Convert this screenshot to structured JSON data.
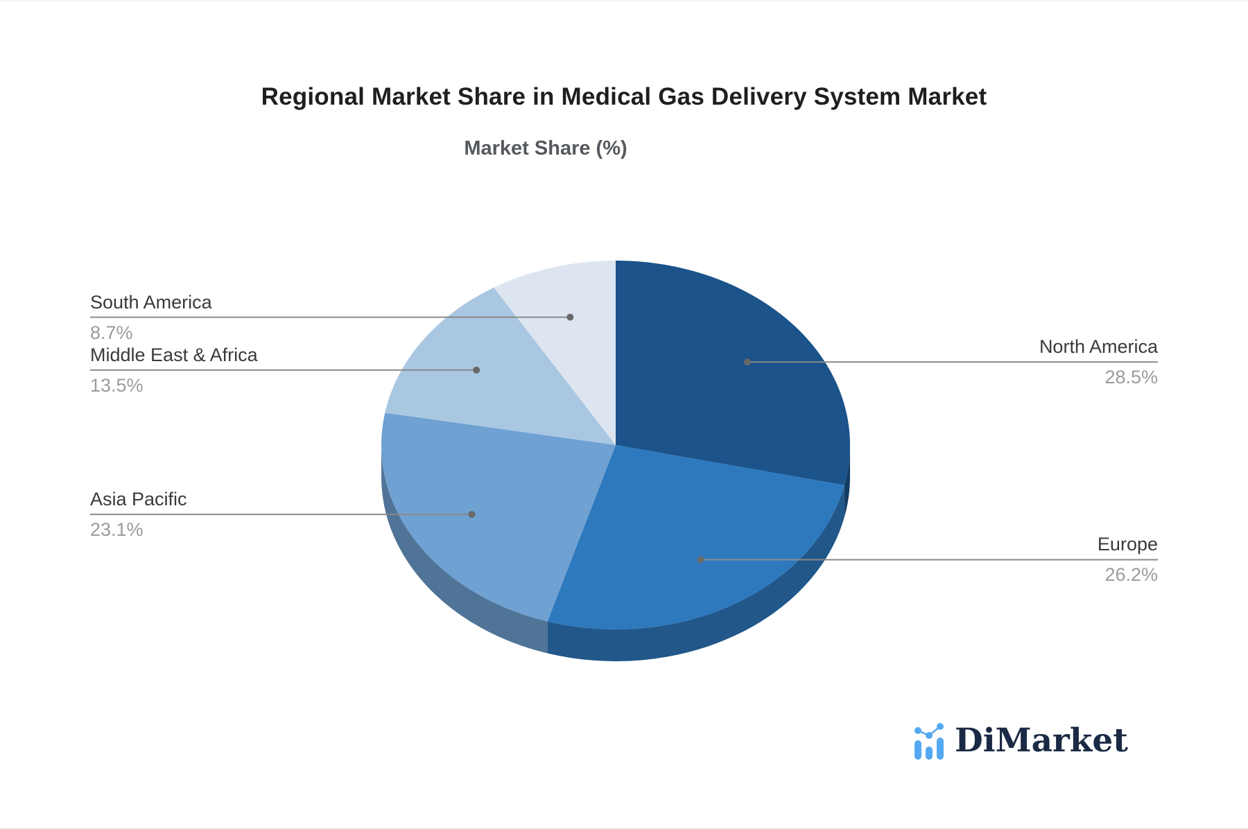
{
  "header": {
    "title": "Regional Market Share in Medical Gas Delivery System Market",
    "subtitle": "Market Share (%)"
  },
  "chart_data": {
    "type": "pie",
    "style": "3d",
    "title": "Regional Market Share in Medical Gas Delivery System Market",
    "subtitle": "Market Share (%)",
    "unit": "%",
    "start_angle": "top",
    "direction": "clockwise",
    "legend": "callout-labels",
    "categories": [
      "North America",
      "Europe",
      "Asia Pacific",
      "Middle East & Africa",
      "South America"
    ],
    "values": [
      28.5,
      26.2,
      23.1,
      13.5,
      8.7
    ],
    "slices": [
      {
        "label": "North America",
        "value": 28.5,
        "display": "28.5%",
        "color": "#1b538a",
        "callout_side": "right"
      },
      {
        "label": "Europe",
        "value": 26.2,
        "display": "26.2%",
        "color": "#2e79be",
        "callout_side": "right"
      },
      {
        "label": "Asia Pacific",
        "value": 23.1,
        "display": "23.1%",
        "color": "#6fa1d2",
        "callout_side": "left"
      },
      {
        "label": "Middle East & Africa",
        "value": 13.5,
        "display": "13.5%",
        "color": "#aac7e2",
        "callout_side": "left"
      },
      {
        "label": "South America",
        "value": 8.7,
        "display": "8.7%",
        "color": "#dde6f0",
        "callout_side": "left"
      }
    ],
    "callout_line_color": "#8a8a8a",
    "callout_dot_color": "#696969",
    "label_color": "#3a3a3a",
    "value_color": "#9b9b9b"
  },
  "logo": {
    "text": "DiMarket",
    "icon": "bar-line-chart-icon",
    "icon_color": "#55a8f2",
    "text_color": "#1b2a44"
  }
}
